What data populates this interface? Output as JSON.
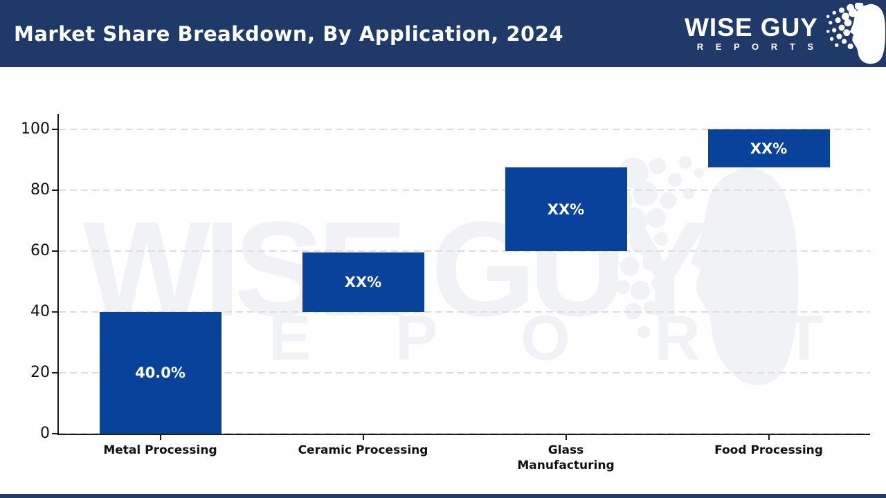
{
  "header": {
    "title": "Market Share Breakdown, By Application, 2024",
    "logo": {
      "line1": "WISE GUY",
      "line2": "R E P O R T S"
    }
  },
  "watermark": {
    "line1": "WISE GUY",
    "line2": "R E P O R T S"
  },
  "chart_data": {
    "type": "bar",
    "subtype": "waterfall",
    "title": "Market Share Breakdown, By Application, 2024",
    "categories": [
      "Metal Processing",
      "Ceramic Processing",
      "Glass\nManufacturing",
      "Food Processing"
    ],
    "series": [
      {
        "name": "Market share (%)",
        "segments": [
          {
            "category": "Metal Processing",
            "start": 0,
            "end": 40,
            "label": "40.0%"
          },
          {
            "category": "Ceramic Processing",
            "start": 40,
            "end": 59.5,
            "label": "XX%"
          },
          {
            "category": "Glass Manufacturing",
            "start": 60,
            "end": 87.5,
            "label": "XX%"
          },
          {
            "category": "Food Processing",
            "start": 87.5,
            "end": 100,
            "label": "XX%"
          }
        ]
      }
    ],
    "yticks": [
      0,
      20,
      40,
      60,
      80,
      100
    ],
    "ylim": [
      0,
      105
    ],
    "xlabel": "",
    "ylabel": "",
    "grid": "horizontal-dashed",
    "legend": "none",
    "bar_color": "#08429b",
    "bar_label_color": "#ffffff"
  },
  "colors": {
    "header_bg": "#1f3a68",
    "bar": "#08429b",
    "grid": "#dcdcdc",
    "axis": "#1a1a1a",
    "watermark": "#f1f2f5"
  }
}
